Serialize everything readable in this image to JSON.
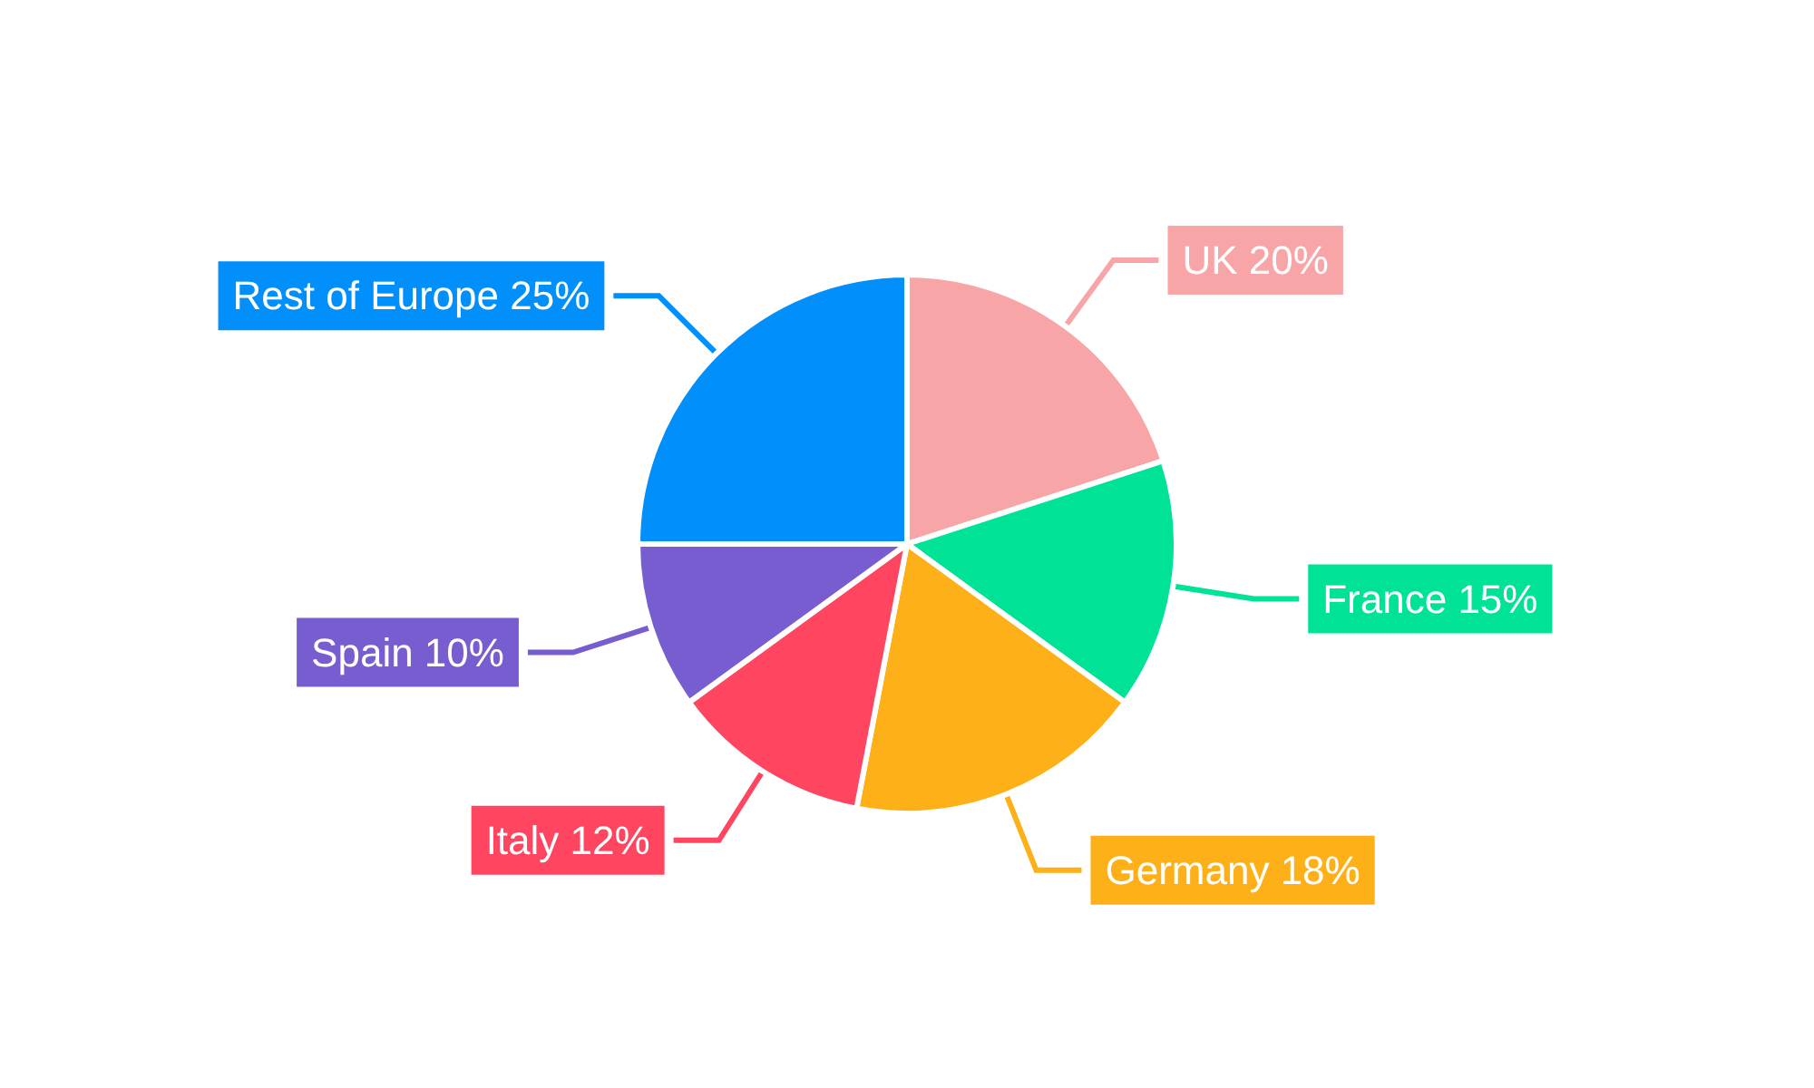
{
  "chart_data": {
    "type": "pie",
    "categories": [
      "UK",
      "France",
      "Germany",
      "Italy",
      "Spain",
      "Rest of Europe"
    ],
    "values": [
      20,
      15,
      18,
      12,
      10,
      25
    ],
    "value_labels": [
      "20%",
      "15%",
      "18%",
      "12%",
      "10%",
      "25%"
    ],
    "colors": [
      "#f8a5a8",
      "#00e396",
      "#feb019",
      "#ff4560",
      "#775dd0",
      "#008ffb"
    ],
    "legend": false
  }
}
